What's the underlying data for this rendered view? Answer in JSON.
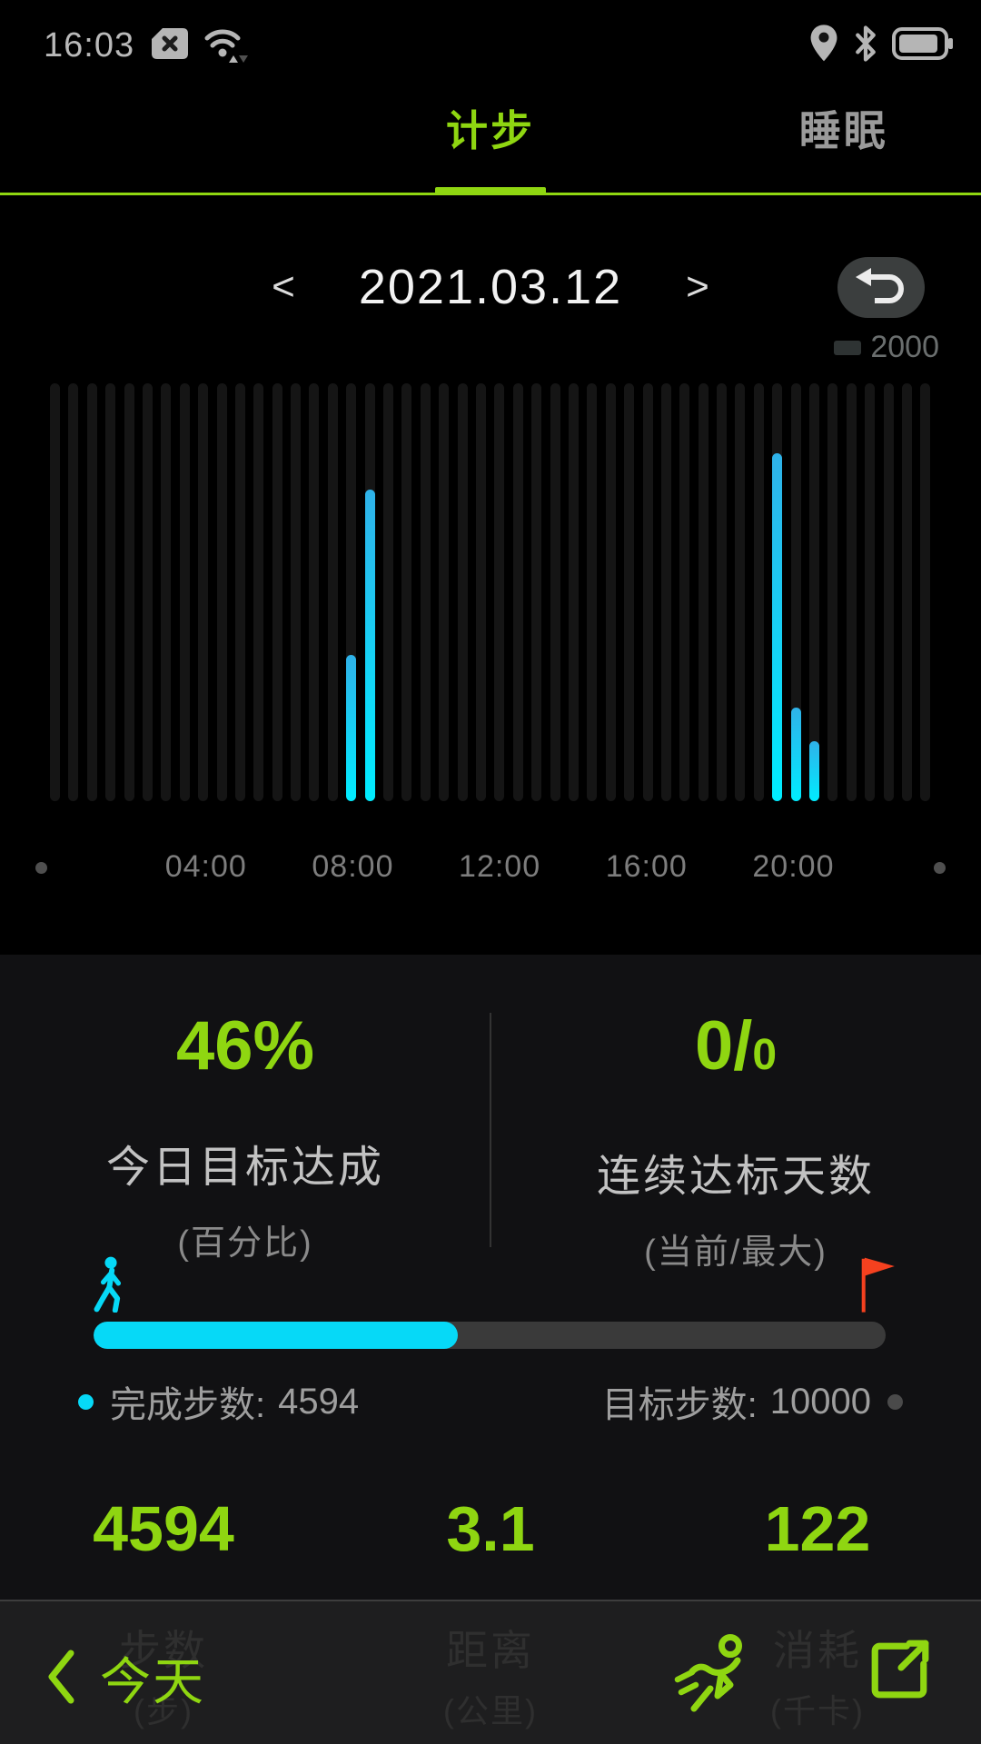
{
  "colors": {
    "accent_green": "#8FD611",
    "accent_cyan": "#06D9F7",
    "flag_red": "#F5411F",
    "legend_swatch": "#2E3333",
    "chart_placeholder_bar": "#151515"
  },
  "status_bar": {
    "time": "16:03",
    "left_icons": [
      "sim-missing-icon",
      "wifi-icon"
    ],
    "right_icons": [
      "location-icon",
      "bluetooth-icon",
      "battery-icon"
    ]
  },
  "tabs": {
    "steps": {
      "label": "计步",
      "active": true
    },
    "sleep": {
      "label": "睡眠",
      "active": false
    }
  },
  "date_nav": {
    "prev": "<",
    "date": "2021.03.12",
    "next": ">"
  },
  "legend": {
    "label": "2000"
  },
  "chart_data": {
    "type": "bar",
    "slots": 48,
    "slot_minutes": 30,
    "values": [
      0,
      0,
      0,
      0,
      0,
      0,
      0,
      0,
      0,
      0,
      0,
      0,
      0,
      0,
      0,
      0,
      700,
      1490,
      0,
      0,
      0,
      0,
      0,
      0,
      0,
      0,
      0,
      0,
      0,
      0,
      0,
      0,
      0,
      0,
      0,
      0,
      0,
      0,
      0,
      1665,
      450,
      289,
      0,
      0,
      0,
      0,
      0,
      0
    ],
    "ticks": [
      {
        "label": "04:00",
        "slot": 8
      },
      {
        "label": "08:00",
        "slot": 16
      },
      {
        "label": "12:00",
        "slot": 24
      },
      {
        "label": "16:00",
        "slot": 32
      },
      {
        "label": "20:00",
        "slot": 40
      }
    ],
    "ylim": [
      0,
      2000
    ],
    "legend_max": "2000",
    "grid": false,
    "bar_color": "cyan-gradient",
    "title": ""
  },
  "goals": {
    "percent": {
      "value": "46%",
      "label": "今日目标达成",
      "sub": "(百分比)"
    },
    "streak": {
      "current": "0",
      "sep": "/",
      "max": "0",
      "label": "连续达标天数",
      "sub": "(当前/最大)"
    }
  },
  "progress": {
    "percent": 46,
    "completed_label": "完成步数:",
    "completed_value": "4594",
    "goal_label": "目标步数:",
    "goal_value": "10000"
  },
  "summary": [
    {
      "value": "4594",
      "label": "步数",
      "sub": "(步)"
    },
    {
      "value": "3.1",
      "label": "距离",
      "sub": "(公里)"
    },
    {
      "value": "122",
      "label": "消耗",
      "sub": "(千卡)"
    }
  ],
  "bottom_bar": {
    "back_label": "今天"
  }
}
